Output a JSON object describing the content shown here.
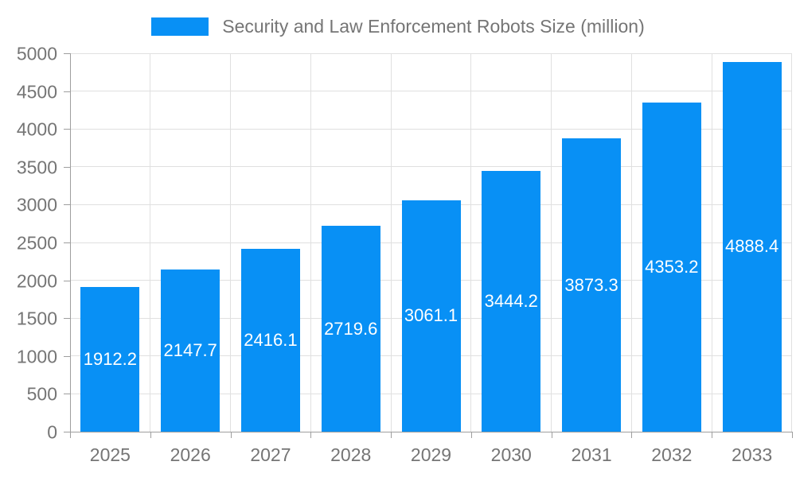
{
  "legend": {
    "label": "Security and Law Enforcement Robots Size (million)"
  },
  "colors": {
    "bar": "#0890F5",
    "axis_line": "#9e9e9e",
    "gridline": "#e0e0e0",
    "tick_text": "#757575",
    "value_label_text": "#ffffff",
    "background": "#ffffff"
  },
  "chart_data": {
    "type": "bar",
    "title": "Security and Law Enforcement Robots Size (million)",
    "categories": [
      "2025",
      "2026",
      "2027",
      "2028",
      "2029",
      "2030",
      "2031",
      "2032",
      "2033"
    ],
    "values": [
      1912.2,
      2147.7,
      2416.1,
      2719.6,
      3061.1,
      3444.2,
      3873.3,
      4353.2,
      4888.4
    ],
    "xlabel": "",
    "ylabel": "",
    "ylim": [
      0,
      5000
    ],
    "ytick_step": 500,
    "grid": true,
    "legend_position": "top",
    "value_labels": "centered-inside-bars",
    "bar_color": "#0890F5"
  }
}
